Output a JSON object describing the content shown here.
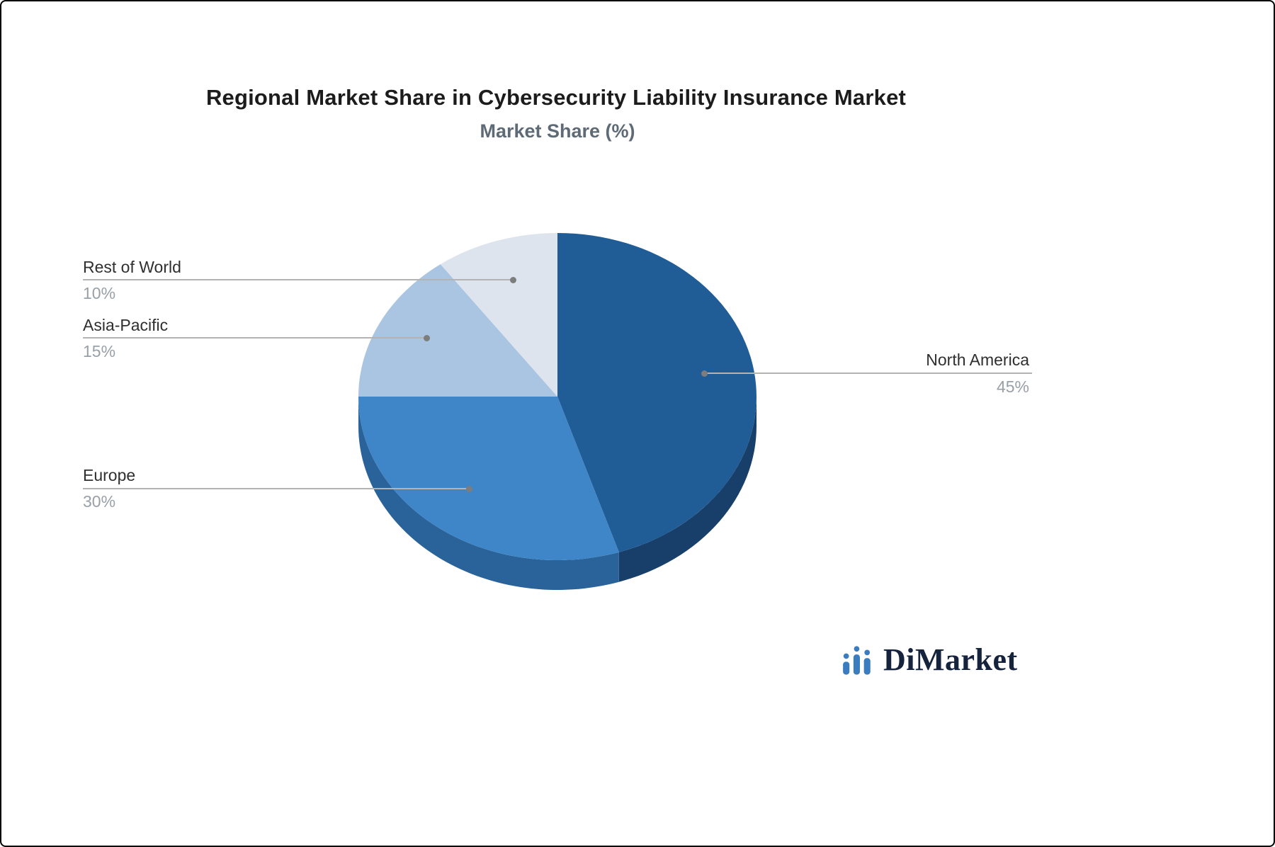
{
  "chart_data": {
    "type": "pie",
    "title": "Regional Market Share in Cybersecurity Liability Insurance Market",
    "subtitle": "Market Share (%)",
    "unit": "%",
    "direction": "clockwise",
    "start_angle_deg": 0,
    "effect": "3d",
    "legend_position": "callout-labels",
    "slices": [
      {
        "label": "North America",
        "value": 45,
        "percent_label": "45%",
        "color": "#205c96",
        "side_color": "#173f69"
      },
      {
        "label": "Europe",
        "value": 30,
        "percent_label": "30%",
        "color": "#3e86c7",
        "side_color": "#2a639a"
      },
      {
        "label": "Asia-Pacific",
        "value": 15,
        "percent_label": "15%",
        "color": "#aac5e1",
        "side_color": "#7fa0c2"
      },
      {
        "label": "Rest of World",
        "value": 10,
        "percent_label": "10%",
        "color": "#dee4ee",
        "side_color": "#b4bfd0"
      }
    ]
  },
  "branding": {
    "logo_text": "DiMarket",
    "logo_color": "#15233c",
    "icon_color": "#3a7cc0"
  }
}
